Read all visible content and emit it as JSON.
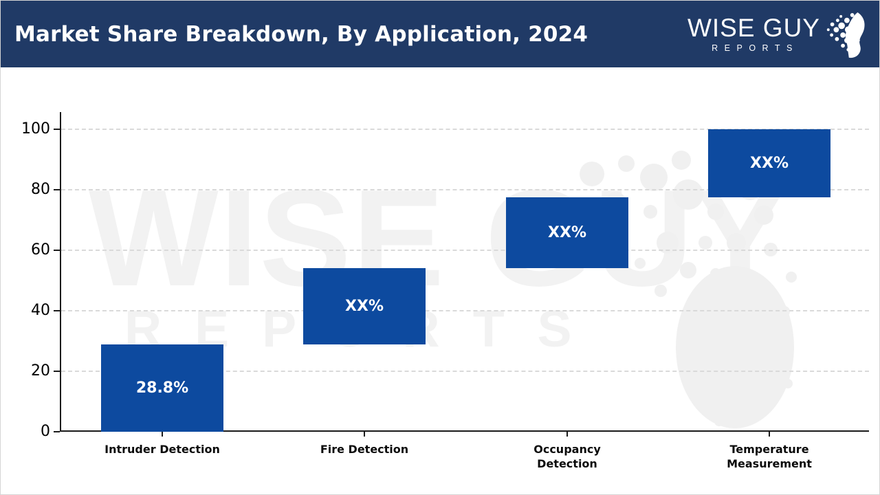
{
  "header": {
    "title": "Market Share Breakdown, By Application, 2024",
    "logo": {
      "name": "WISE GUY",
      "sub": "REPORTS"
    }
  },
  "watermark": {
    "big": "WISE GUY",
    "small": "REPORTS"
  },
  "colors": {
    "header_background": "#203a66",
    "bar": "#0d4a9f",
    "bar_label_text": "#ffffff",
    "axis": "#1a1a1a",
    "gridline": "#d9d9d9",
    "watermark": "#f2f2f2"
  },
  "chart_data": {
    "type": "bar",
    "subtype": "waterfall-stair",
    "title": "Market Share Breakdown, By Application, 2024",
    "categories": [
      "Intruder Detection",
      "Fire Detection",
      "Occupancy Detection",
      "Temperature Measurement"
    ],
    "category_label_lines": [
      [
        "Intruder Detection"
      ],
      [
        "Fire Detection"
      ],
      [
        "Occupancy",
        "Detection"
      ],
      [
        "Temperature",
        "Measurement"
      ]
    ],
    "segments": [
      {
        "category": "Intruder Detection",
        "start": 0,
        "end": 28.8,
        "label": "28.8%"
      },
      {
        "category": "Fire Detection",
        "start": 28.8,
        "end": 54.0,
        "label": "XX%"
      },
      {
        "category": "Occupancy Detection",
        "start": 54.0,
        "end": 77.5,
        "label": "XX%"
      },
      {
        "category": "Temperature Measurement",
        "start": 77.5,
        "end": 100.0,
        "label": "XX%"
      }
    ],
    "yticks": [
      0,
      20,
      40,
      60,
      80,
      100
    ],
    "ylim": [
      0,
      105.7
    ],
    "xlabel": "",
    "ylabel": "",
    "grid": "horizontal-dashed",
    "legend": "none"
  }
}
